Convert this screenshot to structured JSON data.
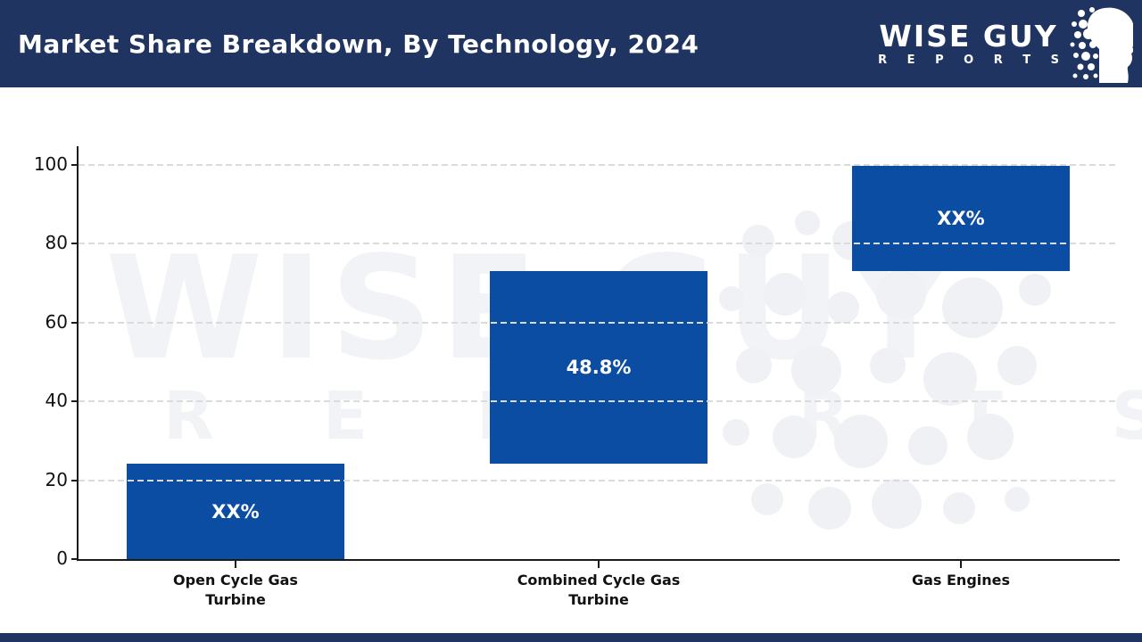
{
  "header": {
    "title": "Market Share Breakdown, By Technology, 2024",
    "logo": {
      "line1": "WISE GUY",
      "line2": "R E P O R T S"
    }
  },
  "watermark": {
    "line1": "WISE GUY",
    "line2": "R E P O R T S"
  },
  "colors": {
    "header_bg": "#1F3461",
    "bar_fill": "#0B4DA2",
    "bar_label": "#FFFFFF",
    "grid": "#DADBDC",
    "axis": "#1A1A1A",
    "watermark": "#F2F3F6"
  },
  "chart_data": {
    "type": "bar",
    "subtype": "waterfall-style floating bars",
    "title": "Market Share Breakdown, By Technology, 2024",
    "categories": [
      "Open Cycle Gas Turbine",
      "Combined Cycle Gas Turbine",
      "Gas Engines"
    ],
    "category_lines": [
      [
        "Open Cycle Gas",
        "Turbine"
      ],
      [
        "Combined Cycle Gas",
        "Turbine"
      ],
      [
        "Gas Engines"
      ]
    ],
    "segments": [
      {
        "category": "Open Cycle Gas Turbine",
        "start": 0,
        "end": 24.2,
        "label": "XX%"
      },
      {
        "category": "Combined Cycle Gas Turbine",
        "start": 24.2,
        "end": 73.0,
        "label": "48.8%"
      },
      {
        "category": "Gas Engines",
        "start": 73.0,
        "end": 99.8,
        "label": "XX%"
      }
    ],
    "xlabel": "",
    "ylabel": "",
    "ylim": [
      0,
      105
    ],
    "yticks": [
      0,
      20,
      40,
      60,
      80,
      100
    ],
    "grid": "horizontal dashed, drawn above bars",
    "legend": "none"
  }
}
